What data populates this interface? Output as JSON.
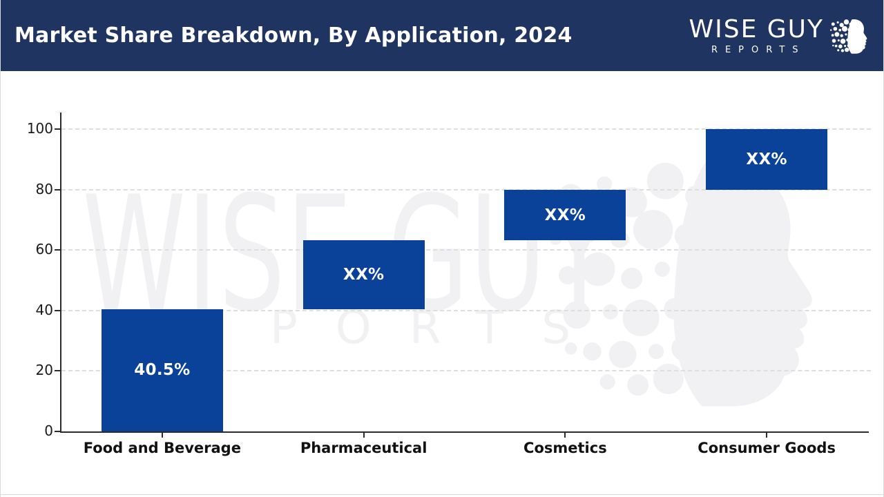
{
  "header": {
    "title": "Market Share Breakdown, By Application, 2024",
    "logo": {
      "line1": "WISE GUY",
      "line2": "REPORTS"
    }
  },
  "watermark": {
    "line1": "WISE GUY",
    "line2": "PORTS"
  },
  "colors": {
    "header_bg": "#1f3460",
    "bar": "#0a4199",
    "grid": "#dedede",
    "axis": "#2b2b2b",
    "watermark": "#f1f1f3",
    "bar_label": "#ffffff"
  },
  "chart_data": {
    "type": "bar",
    "subtype": "waterfall",
    "title": "Market Share Breakdown, By Application, 2024",
    "xlabel": "",
    "ylabel": "",
    "categories": [
      "Food and Beverage",
      "Pharmaceutical",
      "Cosmetics",
      "Consumer Goods"
    ],
    "segments": [
      {
        "category": "Food and Beverage",
        "start": 0,
        "end": 40.5,
        "label": "40.5%"
      },
      {
        "category": "Pharmaceutical",
        "start": 40.5,
        "end": 63.3,
        "label": "XX%"
      },
      {
        "category": "Cosmetics",
        "start": 63.3,
        "end": 79.8,
        "label": "XX%"
      },
      {
        "category": "Consumer Goods",
        "start": 79.8,
        "end": 100,
        "label": "XX%"
      }
    ],
    "yticks": [
      0,
      20,
      40,
      60,
      80,
      100
    ],
    "ylim": [
      0,
      105.5
    ],
    "grid": "horizontal-dashed",
    "legend": "none",
    "bar_color": "#0a4199",
    "label_color": "#ffffff"
  }
}
